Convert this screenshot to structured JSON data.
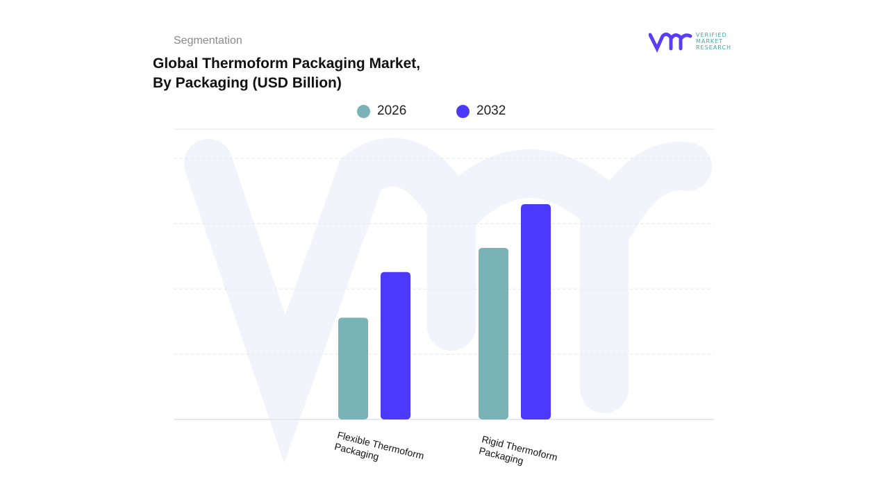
{
  "header": {
    "segment_label": "Segmentation",
    "title_line1": "Global Thermoform Packaging Market,",
    "title_line2": "By Packaging (USD Billion)"
  },
  "logo": {
    "text_lines": [
      "VERIFIED",
      "MARKET",
      "RESEARCH"
    ],
    "color_mark": "#5b3df5",
    "color_text": "#3aa9a5"
  },
  "chart_data": {
    "type": "bar",
    "title": "Global Thermoform Packaging Market, By Packaging (USD Billion)",
    "categories": [
      "Flexible Thermoform Packaging",
      "Rigid Thermoform Packaging"
    ],
    "series": [
      {
        "name": "2026",
        "color": "#7ab3b6",
        "values": [
          1.56,
          2.63
        ]
      },
      {
        "name": "2032",
        "color": "#4b3afb",
        "values": [
          2.26,
          3.3
        ]
      }
    ],
    "ylim": [
      0,
      4.45
    ],
    "y_ticks_labeled": false,
    "grid": true,
    "legend": "top-center",
    "xlabel": "",
    "ylabel": ""
  }
}
